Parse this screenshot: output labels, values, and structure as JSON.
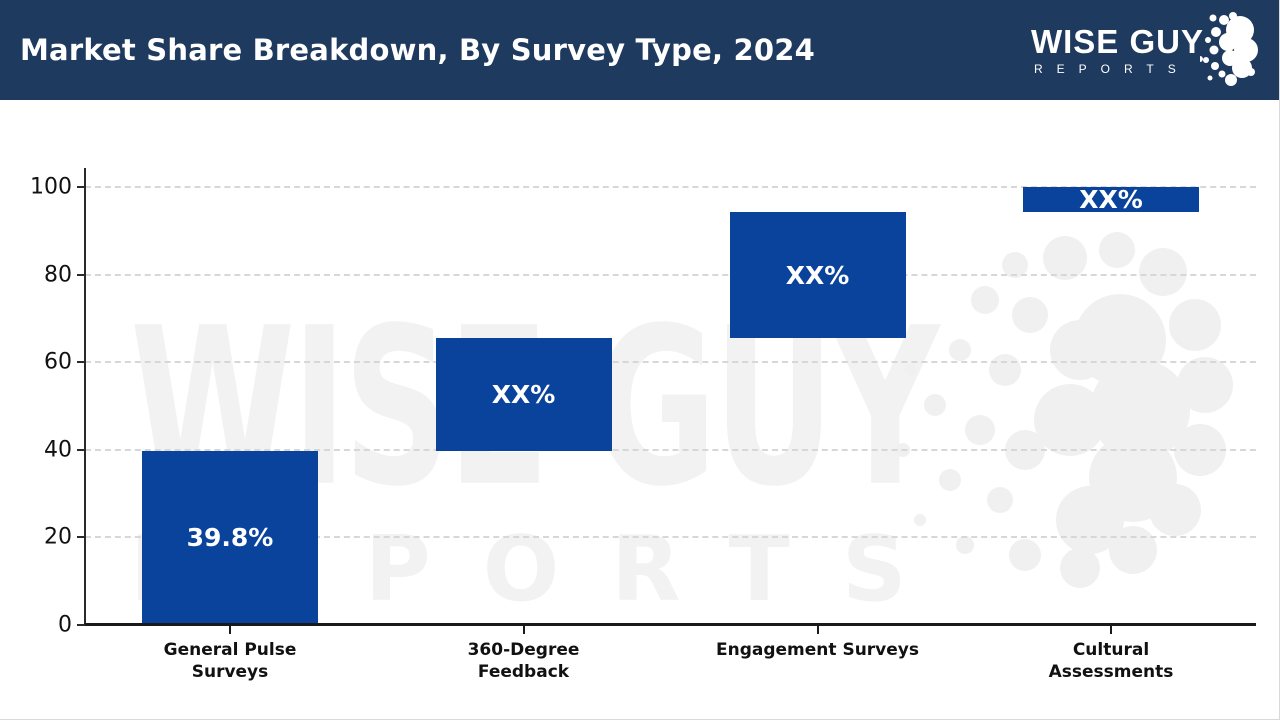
{
  "header": {
    "title": "Market Share Breakdown, By Survey Type, 2024",
    "bg_color": "#1e3a5f",
    "logo": {
      "wordmark": "WISE GUY",
      "subtext": "REPORTS"
    }
  },
  "watermark": {
    "line1": "WISE GUY",
    "line2": "REPORTS"
  },
  "chart_data": {
    "type": "waterfall",
    "title": "Market Share Breakdown, By Survey Type, 2024",
    "categories": [
      "General Pulse Surveys",
      "360-Degree Feedback",
      "Engagement Surveys",
      "Cultural Assessments"
    ],
    "category_label_lines": [
      [
        "General Pulse",
        "Surveys"
      ],
      [
        "360-Degree",
        "Feedback"
      ],
      [
        "Engagement Surveys"
      ],
      [
        "Cultural",
        "Assessments"
      ]
    ],
    "segments": [
      {
        "category": "General Pulse Surveys",
        "start": 0,
        "end": 39.8,
        "label": "39.8%"
      },
      {
        "category": "360-Degree Feedback",
        "start": 39.8,
        "end": 65.5,
        "label": "XX%"
      },
      {
        "category": "Engagement Surveys",
        "start": 65.5,
        "end": 94.2,
        "label": "XX%"
      },
      {
        "category": "Cultural Assessments",
        "start": 94.2,
        "end": 100,
        "label": "XX%"
      }
    ],
    "ylim": [
      0,
      100
    ],
    "yticks": [
      0,
      20,
      40,
      60,
      80,
      100
    ],
    "xlabel": "",
    "ylabel": "",
    "bar_color": "#0a439b",
    "label_color": "#ffffff",
    "grid": "dashed-horizontal",
    "legend": "none"
  }
}
